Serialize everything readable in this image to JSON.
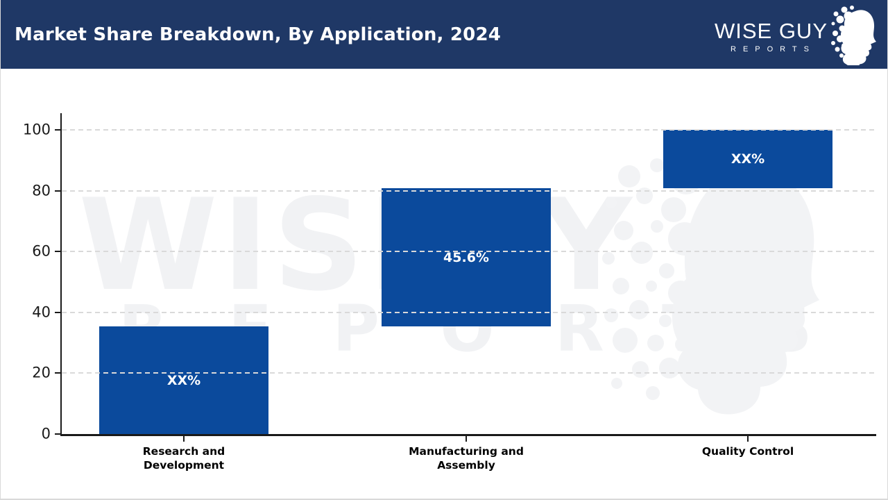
{
  "header": {
    "title": "Market Share Breakdown, By Application, 2024",
    "logo": {
      "name": "WISE GUY",
      "sub": "REPORTS"
    }
  },
  "watermark": {
    "word_left": "WISE",
    "word_right": "Y",
    "word_bottom": "REPORTS"
  },
  "chart_data": {
    "type": "bar",
    "subtype": "floating-waterfall",
    "title": "Market Share Breakdown, By Application, 2024",
    "categories": [
      [
        "Research and",
        "Development"
      ],
      [
        "Manufacturing and",
        "Assembly"
      ],
      [
        "Quality Control"
      ]
    ],
    "segments": [
      {
        "category": "Research and Development",
        "start": 0,
        "end": 35.3,
        "label": "XX%"
      },
      {
        "category": "Manufacturing and Assembly",
        "start": 35.3,
        "end": 80.9,
        "label": "45.6%"
      },
      {
        "category": "Quality Control",
        "start": 80.9,
        "end": 100,
        "label": "XX%"
      }
    ],
    "y_ticks": [
      0,
      20,
      40,
      60,
      80,
      100
    ],
    "ylim": [
      0,
      105.5
    ],
    "grid": "dashed-horizontal",
    "legend": null,
    "bar_color": "#0b4a9c",
    "bar_label_color": "#ffffff"
  },
  "colors": {
    "header_bg": "#1f3866",
    "bar": "#0b4a9c",
    "grid": "#d9d9d9",
    "axis": "#1a1a1a",
    "watermark": "#f1f2f4",
    "page_border": "#d9d9d9"
  }
}
